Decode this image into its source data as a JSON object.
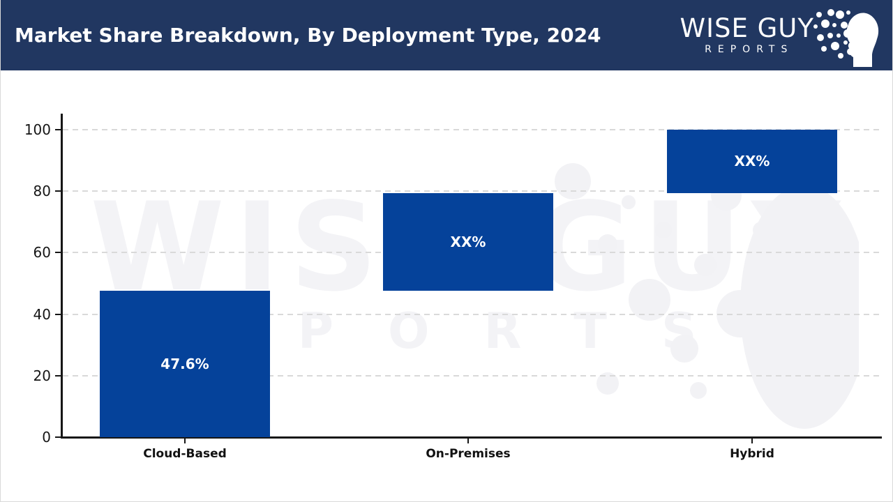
{
  "header": {
    "title": "Market Share Breakdown, By Deployment Type, 2024",
    "background_color": "#213761",
    "logo": {
      "name_line": "WISE GUY",
      "sub_line": "REPORTS"
    }
  },
  "watermark": {
    "name_line": "WISE GUY",
    "sub_line": "REPORTS"
  },
  "chart_data": {
    "type": "bar",
    "subtype": "waterfall",
    "title": "Market Share Breakdown, By Deployment Type, 2024",
    "categories": [
      "Cloud-Based",
      "On-Premises",
      "Hybrid"
    ],
    "series": [
      {
        "name": "Market Share (%)",
        "segments": [
          {
            "category": "Cloud-Based",
            "label": "47.6%",
            "start": 0,
            "end": 47.6,
            "approx_value": 47.6
          },
          {
            "category": "On-Premises",
            "label": "XX%",
            "start": 47.6,
            "end": 79.4,
            "approx_value": 31.8
          },
          {
            "category": "Hybrid",
            "label": "XX%",
            "start": 79.4,
            "end": 100,
            "approx_value": 20.6
          }
        ]
      }
    ],
    "xlabel": "",
    "ylabel": "",
    "yticks": [
      0,
      20,
      40,
      60,
      80,
      100
    ],
    "ylim": [
      0,
      105
    ],
    "grid": true,
    "grid_style": "dashed",
    "legend": false,
    "bar_color": "#05429a",
    "bar_label_color": "#ffffff",
    "axis_color": "#161616"
  }
}
